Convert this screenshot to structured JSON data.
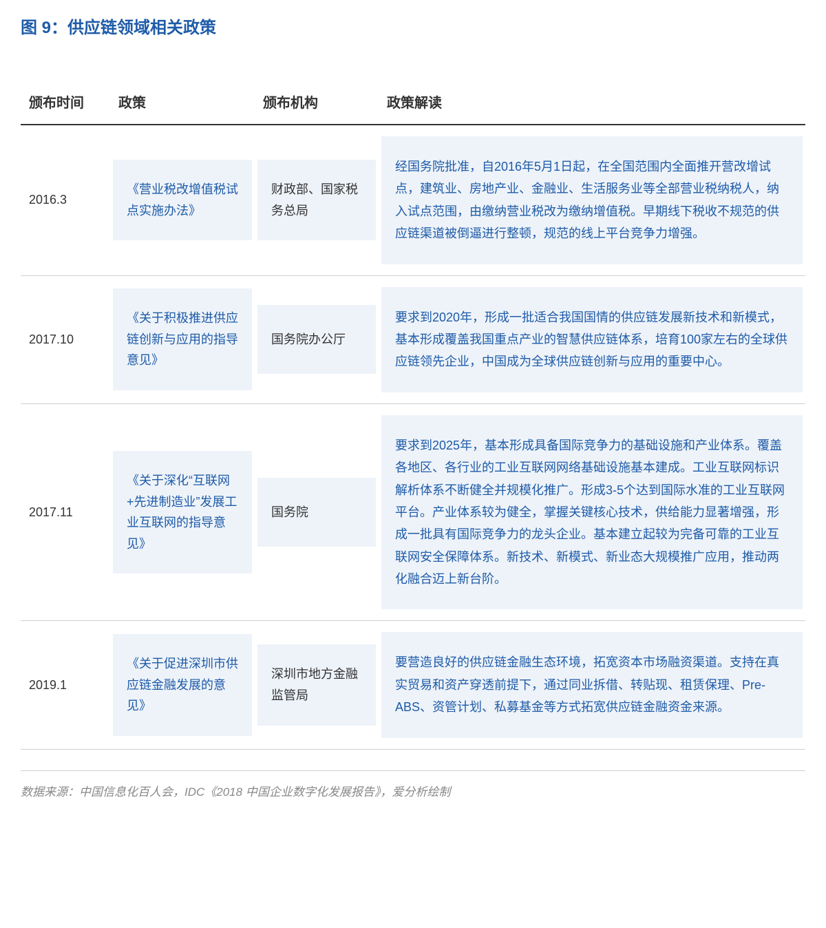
{
  "title": "图 9：供应链领域相关政策",
  "columns": [
    "颁布时间",
    "政策",
    "颁布机构",
    "政策解读"
  ],
  "rows": [
    {
      "date": "2016.3",
      "policy": "《营业税改增值税试点实施办法》",
      "agency": "财政部、国家税务总局",
      "desc": "经国务院批准，自2016年5月1日起，在全国范围内全面推开营改增试点，建筑业、房地产业、金融业、生活服务业等全部营业税纳税人，纳入试点范围，由缴纳营业税改为缴纳增值税。早期线下税收不规范的供应链渠道被倒逼进行整顿，规范的线上平台竞争力增强。"
    },
    {
      "date": "2017.10",
      "policy": "《关于积极推进供应链创新与应用的指导意见》",
      "agency": "国务院办公厅",
      "desc": "要求到2020年，形成一批适合我国国情的供应链发展新技术和新模式，基本形成覆盖我国重点产业的智慧供应链体系，培育100家左右的全球供应链领先企业，中国成为全球供应链创新与应用的重要中心。"
    },
    {
      "date": "2017.11",
      "policy": "《关于深化“互联网+先进制造业”发展工业互联网的指导意见》",
      "agency": "国务院",
      "desc": "要求到2025年，基本形成具备国际竞争力的基础设施和产业体系。覆盖各地区、各行业的工业互联网网络基础设施基本建成。工业互联网标识解析体系不断健全并规模化推广。形成3-5个达到国际水准的工业互联网平台。产业体系较为健全，掌握关键核心技术，供给能力显著增强，形成一批具有国际竞争力的龙头企业。基本建立起较为完备可靠的工业互联网安全保障体系。新技术、新模式、新业态大规模推广应用，推动两化融合迈上新台阶。"
    },
    {
      "date": "2019.1",
      "policy": "《关于促进深圳市供应链金融发展的意见》",
      "agency": "深圳市地方金融监管局",
      "desc": "要营造良好的供应链金融生态环境，拓宽资本市场融资渠道。支持在真实贸易和资产穿透前提下，通过同业拆借、转贴现、租赁保理、Pre-ABS、资管计划、私募基金等方式拓宽供应链金融资金来源。"
    }
  ],
  "footer": "数据来源：中国信息化百人会，IDC《2018 中国企业数字化发展报告》，爱分析绘制",
  "colors": {
    "accent": "#1e5ba8",
    "cell_bg": "#eef3f9",
    "border": "#d0d0d0",
    "footer_text": "#888"
  }
}
